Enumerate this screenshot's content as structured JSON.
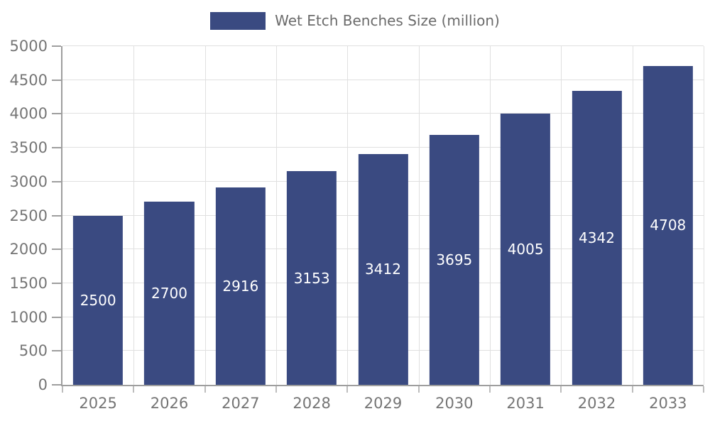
{
  "chart_data": {
    "type": "bar",
    "title": "Wet Etch Benches Size (million)",
    "legend": [
      "Wet Etch Benches Size (million)"
    ],
    "legend_position": "top-center",
    "categories": [
      "2025",
      "2026",
      "2027",
      "2028",
      "2029",
      "2030",
      "2031",
      "2032",
      "2033"
    ],
    "values": [
      2500,
      2700,
      2916,
      3153,
      3412,
      3695,
      4005,
      4342,
      4708
    ],
    "bar_labels": [
      "2500",
      "2700",
      "2916",
      "3153",
      "3412",
      "3695",
      "4005",
      "4342",
      "4708"
    ],
    "xlabel": "",
    "ylabel": "",
    "ylim": [
      0,
      5000
    ],
    "ytick_step": 500,
    "yticks": [
      0,
      500,
      1000,
      1500,
      2000,
      2500,
      3000,
      3500,
      4000,
      4500,
      5000
    ],
    "grid": true,
    "colors": {
      "bar": "#3a4a81",
      "bar_label": "#ffffff",
      "grid": "#e0e0e0",
      "axis": "#9e9e9e",
      "y_tick": "#9e9e9e",
      "x_tick": "#bdbdbd",
      "tick_label": "#757575",
      "legend_text": "#6b6b6b",
      "background": "#ffffff"
    }
  }
}
